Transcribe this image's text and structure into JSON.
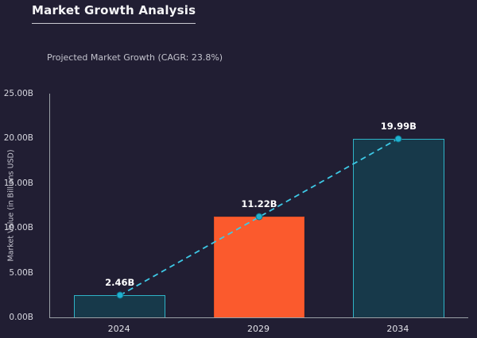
{
  "header": {
    "title": "Market Growth Analysis",
    "subtitle": "Projected Market Growth (CAGR: 23.8%)"
  },
  "chart_data": {
    "type": "bar",
    "title": "Market Growth Analysis",
    "subtitle": "Projected Market Growth (CAGR: 23.8%)",
    "xlabel": "",
    "ylabel": "Market Value (in Billions USD)",
    "categories": [
      "2024",
      "2029",
      "2034"
    ],
    "values": [
      2.46,
      11.22,
      19.99
    ],
    "value_labels": [
      "2.46B",
      "11.22B",
      "19.99B"
    ],
    "ylim": [
      0,
      25
    ],
    "ytick_values": [
      0,
      5,
      10,
      15,
      20,
      25
    ],
    "ytick_labels": [
      "0.00B",
      "5.00B",
      "10.00B",
      "15.00B",
      "20.00B",
      "25.00B"
    ],
    "grid": false,
    "legend": "none",
    "overlay": "dashed trend line with circular markers connecting bar tops",
    "colors": {
      "background": "#211e33",
      "bar_fills": [
        "#17394a",
        "#fb5a2d",
        "#17394a"
      ],
      "bar_strokes": [
        "#2fb3c7",
        "#e14f24",
        "#2fb3c7"
      ],
      "trend_line": "#3ec9e6",
      "marker_fill": "#1fb0cf",
      "marker_stroke": "#0d6e85",
      "axis": "#9aa0a6",
      "text": "#f5f5f7"
    }
  }
}
